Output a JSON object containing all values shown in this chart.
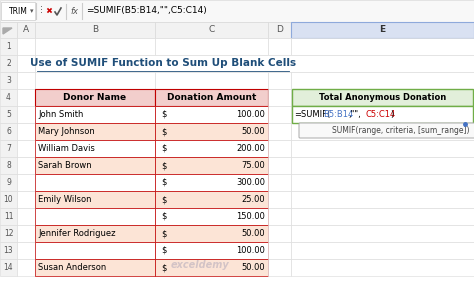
{
  "title": "Use of SUMIF Function to Sum Up Blank Cells",
  "cell_name": "TRIM",
  "formula_bar_text": "=SUMIF(B5:B14,\"\",C5:C14)",
  "donor_names": [
    "John Smith",
    "Mary Johnson",
    "William Davis",
    "Sarah Brown",
    "",
    "Emily Wilson",
    "",
    "Jennifer Rodriguez",
    "",
    "Susan Anderson"
  ],
  "donations": [
    "100.00",
    "50.00",
    "200.00",
    "75.00",
    "300.00",
    "25.00",
    "150.00",
    "50.00",
    "100.00",
    "50.00"
  ],
  "tooltip_header": "Total Anonymous Donation",
  "tooltip_hint": "SUMIF(range, criteria, [sum_range])",
  "bg_color": "#FFFFFF",
  "title_color": "#1F4E79",
  "formula_blue": "#4472C4",
  "formula_red": "#CC0000",
  "header_fill": "#F2CECC",
  "row_fill_light": "#FCE4D6",
  "tooltip_header_bg": "#E2EFDA",
  "tooltip_border": "#70AD47",
  "tooltip_hint_bg": "#F2F2F2",
  "col_e_header_bg": "#D9E1F2",
  "col_e_header_border": "#8EA9DB",
  "row_num_bg": "#F2F2F2",
  "col_header_bg": "#F2F2F2",
  "grid_light": "#D9D9D9",
  "red_border": "#C00000",
  "formula_bar_bg": "#FFFFFF",
  "formula_bar_border": "#D9D9D9"
}
